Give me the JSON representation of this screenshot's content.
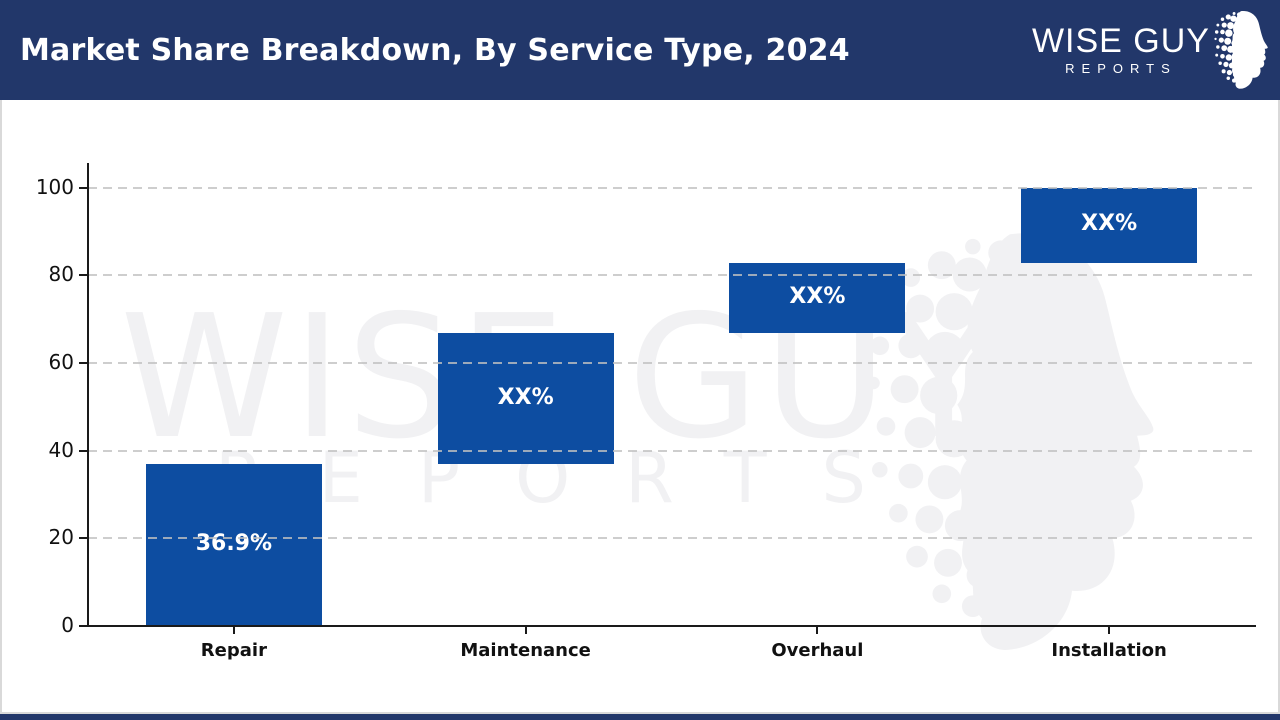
{
  "header": {
    "title": "Market Share Breakdown, By Service Type, 2024",
    "logo": {
      "wordmark": "WISE GUY",
      "subtext": "REPORTS",
      "icon": "dotted-head-profile-icon"
    }
  },
  "watermark": {
    "wordmark": "WISE GUY",
    "subtext": "REPORTS",
    "icon": "dotted-head-profile-icon"
  },
  "chart_data": {
    "type": "bar",
    "subtype": "floating segment bars (waterfall-style share breakdown)",
    "title": "Market Share Breakdown, By Service Type, 2024",
    "categories": [
      "Repair",
      "Maintenance",
      "Overhaul",
      "Installation"
    ],
    "segments": [
      {
        "category": "Repair",
        "start": 0,
        "end": 36.9,
        "value": 36.9,
        "label": "36.9%"
      },
      {
        "category": "Maintenance",
        "start": 36.9,
        "end": 66.8,
        "value": 29.9,
        "label": "XX%"
      },
      {
        "category": "Overhaul",
        "start": 66.8,
        "end": 82.8,
        "value": 16.0,
        "label": "XX%"
      },
      {
        "category": "Installation",
        "start": 82.8,
        "end": 100,
        "value": 17.2,
        "label": "XX%"
      }
    ],
    "xlabel": "",
    "ylabel": "",
    "ylim": [
      0,
      105
    ],
    "yticks": [
      0,
      20,
      40,
      60,
      80,
      100
    ],
    "grid": "horizontal dashed gridlines, drawn over bars",
    "legend": "none",
    "bar_color": "#0d4da1",
    "bar_label_color": "#ffffff"
  },
  "colors": {
    "header_bg": "#22376a",
    "footer_bg": "#22376a",
    "bar_fill": "#0d4da1",
    "axis": "#1a1a1a",
    "gridline": "#d4d4d4",
    "watermark": "#f1f1f3",
    "page_bg": "#ffffff",
    "side_border": "#d9d9d9"
  }
}
